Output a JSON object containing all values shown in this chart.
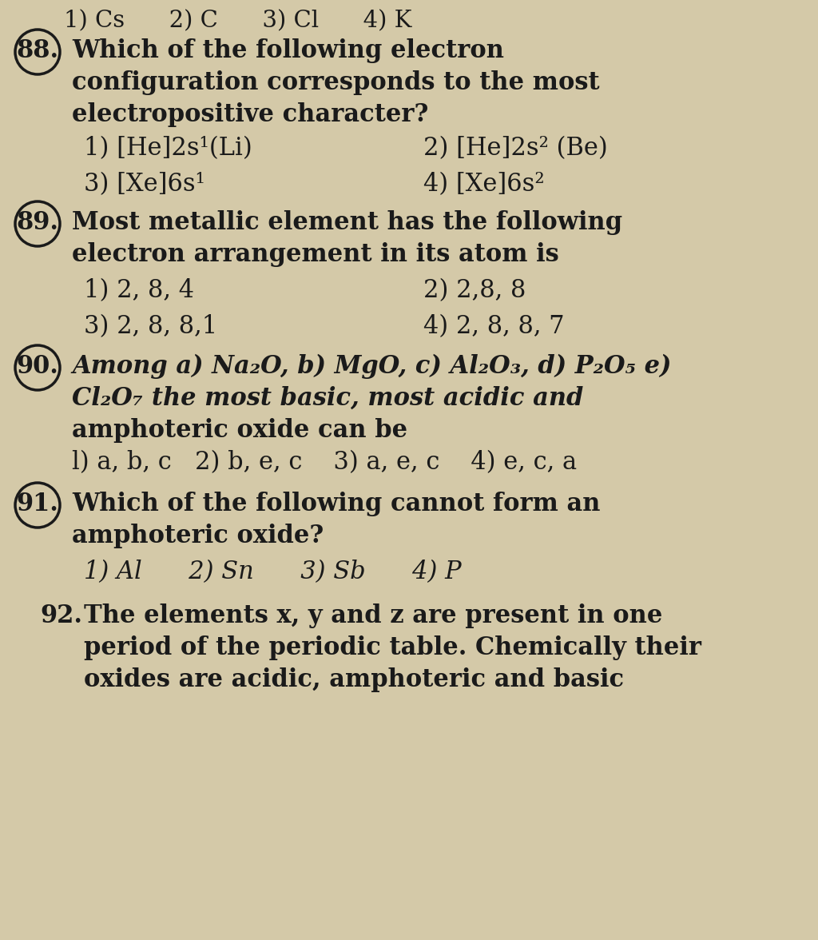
{
  "background_color": "#d4c9a8",
  "text_color": "#1a1a1a",
  "top_partial_line": "1) Cs      2) C      3) Cl      4) K",
  "q88_number": "88.",
  "q88_line1": "Which of the following electron",
  "q88_line2": "configuration corresponds to the most",
  "q88_line3": "electropositive character?",
  "q88_opt1": "1) [He]2s¹(Li)",
  "q88_opt2": "2) [He]2s² (Be)",
  "q88_opt3": "3) [Xe]6s¹",
  "q88_opt4": "4) [Xe]6s²",
  "q89_number": "89.",
  "q89_line1": "Most metallic element has the following",
  "q89_line2": "electron arrangement in its atom is",
  "q89_opt1": "1) 2, 8, 4",
  "q89_opt2": "2) 2,8, 8",
  "q89_opt3": "3) 2, 8, 8,1",
  "q89_opt4": "4) 2, 8, 8, 7",
  "q90_number": "90.",
  "q90_line1": "Among a) Na₂O, b) MgO, c) Al₂O₃, d) P₂O₅ e)",
  "q90_line2": "Cl₂O₇ the most basic, most acidic and",
  "q90_line3": "amphoteric oxide can be",
  "q90_opts": "l) a, b, c   2) b, e, c    3) a, e, c    4) e, c, a",
  "q91_number": "91.",
  "q91_line1": "Which of the following cannot form an",
  "q91_line2": "amphoteric oxide?",
  "q91_opts": "1) Al      2) Sn      3) Sb      4) P",
  "q92_number": "92.",
  "q92_line1": "The elements x, y and z are present in one",
  "q92_line2": "period of the periodic table. Chemically their",
  "q92_line3": "oxides are acidic, amphoteric and basic"
}
